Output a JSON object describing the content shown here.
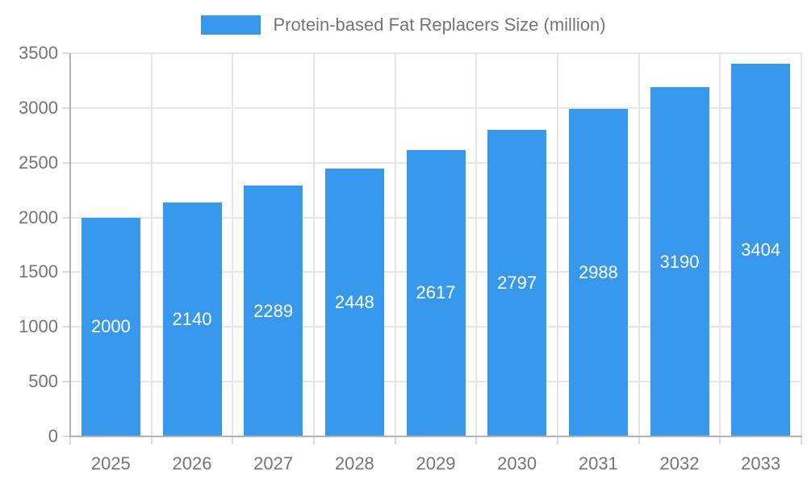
{
  "legend": {
    "label": "Protein-based Fat Replacers Size (million)"
  },
  "chart_data": {
    "type": "bar",
    "title": "Protein-based Fat Replacers Size (million)",
    "categories": [
      "2025",
      "2026",
      "2027",
      "2028",
      "2029",
      "2030",
      "2031",
      "2032",
      "2033"
    ],
    "values": [
      2000,
      2140,
      2289,
      2448,
      2617,
      2797,
      2988,
      3190,
      3404
    ],
    "xlabel": "",
    "ylabel": "",
    "ylim": [
      0,
      3500
    ],
    "yticks": [
      0,
      500,
      1000,
      1500,
      2000,
      2500,
      3000,
      3500
    ],
    "grid": true,
    "legend_position": "top",
    "value_labels": "centered-inside-bars",
    "colors": {
      "bar": "#3898EC",
      "value_label": "#ffffff",
      "axis_line": "#b3b3b3",
      "gridline": "#e6e6e6",
      "tick": "#dcdcdc",
      "text": "#757575"
    }
  }
}
